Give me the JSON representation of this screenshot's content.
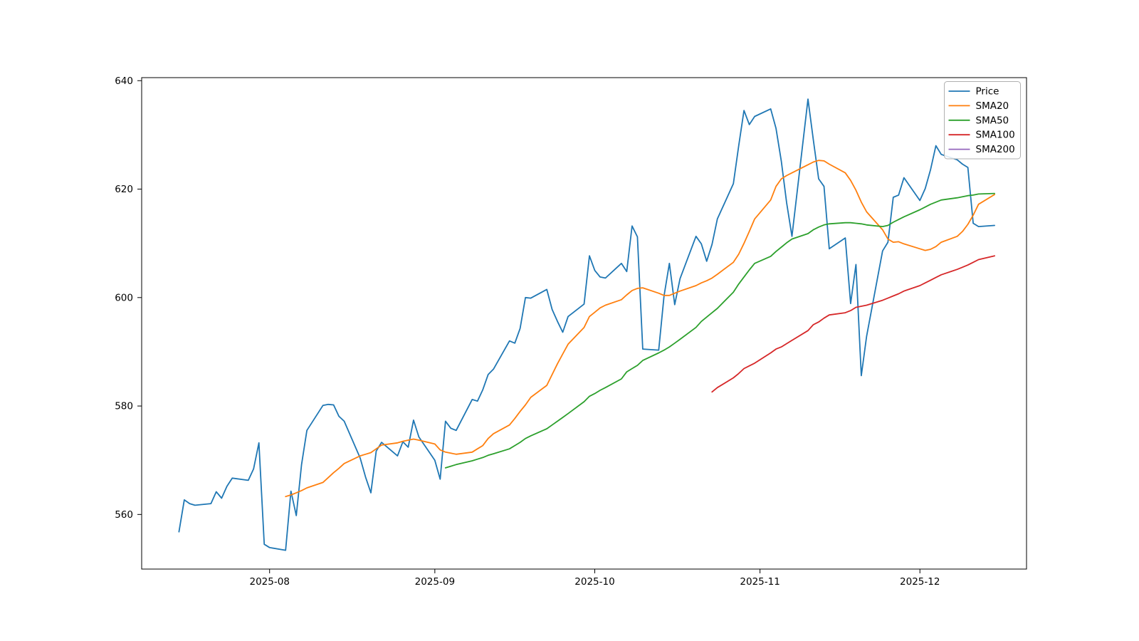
{
  "chart_data": {
    "type": "line",
    "title": "",
    "xlabel": "",
    "ylabel": "",
    "grid": false,
    "background_color": "#ffffff",
    "spine_color": "#000000",
    "x_axis": {
      "range": [
        "2025-07-08",
        "2025-12-21"
      ],
      "ticks": [
        {
          "label": "2025-08",
          "date": "2025-08-01"
        },
        {
          "label": "2025-09",
          "date": "2025-09-01"
        },
        {
          "label": "2025-10",
          "date": "2025-10-01"
        },
        {
          "label": "2025-11",
          "date": "2025-11-01"
        },
        {
          "label": "2025-12",
          "date": "2025-12-01"
        }
      ]
    },
    "y_axis": {
      "range": [
        549.93,
        640.56
      ],
      "ticks": [
        560,
        580,
        600,
        620,
        640
      ]
    },
    "legend": {
      "position": "upper right",
      "entries": [
        {
          "label": "Price",
          "color": "#1f77b4"
        },
        {
          "label": "SMA20",
          "color": "#ff7f0e"
        },
        {
          "label": "SMA50",
          "color": "#2ca02c"
        },
        {
          "label": "SMA100",
          "color": "#d62728"
        },
        {
          "label": "SMA200",
          "color": "#9467bd"
        }
      ]
    },
    "dates": [
      "2025-07-15",
      "2025-07-16",
      "2025-07-17",
      "2025-07-18",
      "2025-07-21",
      "2025-07-22",
      "2025-07-23",
      "2025-07-24",
      "2025-07-25",
      "2025-07-28",
      "2025-07-29",
      "2025-07-30",
      "2025-07-31",
      "2025-08-01",
      "2025-08-04",
      "2025-08-05",
      "2025-08-06",
      "2025-08-07",
      "2025-08-08",
      "2025-08-11",
      "2025-08-12",
      "2025-08-13",
      "2025-08-14",
      "2025-08-15",
      "2025-08-18",
      "2025-08-19",
      "2025-08-20",
      "2025-08-21",
      "2025-08-22",
      "2025-08-25",
      "2025-08-26",
      "2025-08-27",
      "2025-08-28",
      "2025-08-29",
      "2025-09-01",
      "2025-09-02",
      "2025-09-03",
      "2025-09-04",
      "2025-09-05",
      "2025-09-08",
      "2025-09-09",
      "2025-09-10",
      "2025-09-11",
      "2025-09-12",
      "2025-09-15",
      "2025-09-16",
      "2025-09-17",
      "2025-09-18",
      "2025-09-19",
      "2025-09-22",
      "2025-09-23",
      "2025-09-24",
      "2025-09-25",
      "2025-09-26",
      "2025-09-29",
      "2025-09-30",
      "2025-10-01",
      "2025-10-02",
      "2025-10-03",
      "2025-10-06",
      "2025-10-07",
      "2025-10-08",
      "2025-10-09",
      "2025-10-10",
      "2025-10-13",
      "2025-10-14",
      "2025-10-15",
      "2025-10-16",
      "2025-10-17",
      "2025-10-20",
      "2025-10-21",
      "2025-10-22",
      "2025-10-23",
      "2025-10-24",
      "2025-10-27",
      "2025-10-28",
      "2025-10-29",
      "2025-10-30",
      "2025-10-31",
      "2025-11-03",
      "2025-11-04",
      "2025-11-05",
      "2025-11-06",
      "2025-11-07",
      "2025-11-10",
      "2025-11-11",
      "2025-11-12",
      "2025-11-13",
      "2025-11-14",
      "2025-11-17",
      "2025-11-18",
      "2025-11-19",
      "2025-11-20",
      "2025-11-21",
      "2025-11-24",
      "2025-11-25",
      "2025-11-26",
      "2025-11-27",
      "2025-11-28",
      "2025-12-01",
      "2025-12-02",
      "2025-12-03",
      "2025-12-04",
      "2025-12-05",
      "2025-12-08",
      "2025-12-09",
      "2025-12-10",
      "2025-12-11",
      "2025-12-12",
      "2025-12-15"
    ],
    "series": [
      {
        "name": "Price",
        "color": "#1f77b4",
        "start_index": 0,
        "values": [
          556.8,
          562.7,
          562.0,
          561.7,
          562.0,
          564.2,
          563.0,
          565.2,
          566.7,
          566.3,
          568.4,
          573.2,
          554.5,
          553.9,
          553.4,
          564.3,
          559.8,
          569.2,
          575.5,
          580.1,
          580.3,
          580.2,
          578.1,
          577.2,
          570.4,
          566.9,
          564.0,
          571.7,
          573.3,
          570.8,
          573.4,
          572.4,
          577.4,
          574.3,
          570.0,
          566.5,
          577.2,
          575.9,
          575.5,
          581.2,
          580.9,
          583.0,
          585.8,
          586.8,
          592.0,
          591.6,
          594.3,
          600.0,
          599.9,
          601.5,
          597.8,
          595.6,
          593.6,
          596.5,
          598.8,
          607.7,
          605.0,
          603.8,
          603.6,
          606.3,
          604.8,
          613.2,
          611.2,
          590.5,
          590.3,
          600.3,
          606.3,
          598.7,
          603.5,
          611.3,
          609.9,
          606.7,
          609.8,
          614.5,
          621.0,
          628.0,
          634.5,
          631.9,
          633.4,
          634.8,
          631.2,
          625.1,
          617.5,
          611.3,
          636.6,
          629.1,
          621.9,
          620.5,
          609.0,
          611.0,
          598.9,
          606.1,
          585.6,
          592.9,
          608.6,
          610.2,
          618.5,
          618.9,
          622.1,
          617.9,
          620.1,
          623.6,
          628.0,
          626.4,
          625.4,
          624.6,
          624.0,
          613.7,
          613.1,
          613.3
        ]
      },
      {
        "name": "SMA20",
        "color": "#ff7f0e",
        "start_index": 14,
        "values": [
          563.3,
          563.6,
          564.0,
          564.4,
          564.9,
          565.9,
          566.8,
          567.7,
          568.5,
          569.4,
          570.8,
          571.1,
          571.4,
          572.1,
          572.8,
          573.2,
          573.5,
          573.7,
          573.9,
          573.7,
          573.0,
          571.9,
          571.5,
          571.3,
          571.1,
          571.5,
          572.1,
          572.7,
          574.0,
          574.9,
          576.5,
          577.7,
          579.0,
          580.2,
          581.6,
          583.8,
          585.8,
          587.8,
          589.6,
          591.4,
          594.5,
          596.5,
          597.3,
          598.1,
          598.6,
          599.6,
          600.5,
          601.3,
          601.7,
          601.8,
          600.8,
          600.4,
          600.4,
          600.8,
          601.2,
          602.2,
          602.7,
          603.1,
          603.6,
          604.3,
          606.5,
          608.0,
          610.0,
          612.2,
          614.5,
          618.0,
          620.5,
          621.9,
          622.5,
          623.0,
          624.5,
          625.0,
          625.3,
          625.2,
          624.6,
          623.0,
          621.6,
          619.8,
          617.6,
          615.8,
          612.5,
          610.8,
          610.2,
          610.3,
          609.9,
          609.0,
          608.7,
          608.9,
          609.4,
          610.2,
          611.3,
          612.2,
          613.5,
          615.2,
          617.2,
          619.0
        ]
      },
      {
        "name": "SMA50",
        "color": "#2ca02c",
        "start_index": 36,
        "values": [
          568.6,
          568.9,
          569.2,
          569.9,
          570.2,
          570.5,
          570.9,
          571.2,
          572.1,
          572.7,
          573.3,
          574.0,
          574.5,
          575.8,
          576.5,
          577.2,
          577.9,
          578.6,
          580.8,
          581.8,
          582.3,
          582.9,
          583.4,
          585.0,
          586.3,
          586.9,
          587.5,
          588.4,
          589.8,
          590.3,
          590.9,
          591.6,
          592.3,
          594.5,
          595.6,
          596.4,
          597.2,
          598.0,
          601.0,
          602.5,
          603.8,
          605.1,
          606.3,
          607.6,
          608.5,
          609.3,
          610.1,
          610.8,
          611.8,
          612.5,
          613.0,
          613.4,
          613.6,
          613.8,
          613.8,
          613.7,
          613.6,
          613.4,
          613.1,
          613.3,
          613.9,
          614.4,
          614.9,
          616.2,
          616.7,
          617.2,
          617.6,
          618.0,
          618.4,
          618.6,
          618.8,
          618.9,
          619.1,
          619.2
        ]
      },
      {
        "name": "SMA100",
        "color": "#d62728",
        "start_index": 72,
        "values": [
          582.6,
          583.4,
          585.2,
          586.0,
          586.9,
          587.4,
          587.9,
          589.8,
          590.5,
          590.9,
          591.5,
          592.1,
          593.9,
          595.0,
          595.5,
          596.2,
          596.8,
          597.2,
          597.6,
          598.2,
          598.4,
          598.6,
          599.5,
          599.9,
          600.3,
          600.7,
          601.2,
          602.2,
          602.7,
          603.2,
          603.7,
          604.2,
          605.2,
          605.6,
          606.0,
          606.5,
          607.0,
          607.7
        ]
      },
      {
        "name": "SMA200",
        "color": "#9467bd",
        "start_index": 0,
        "values": []
      }
    ]
  }
}
